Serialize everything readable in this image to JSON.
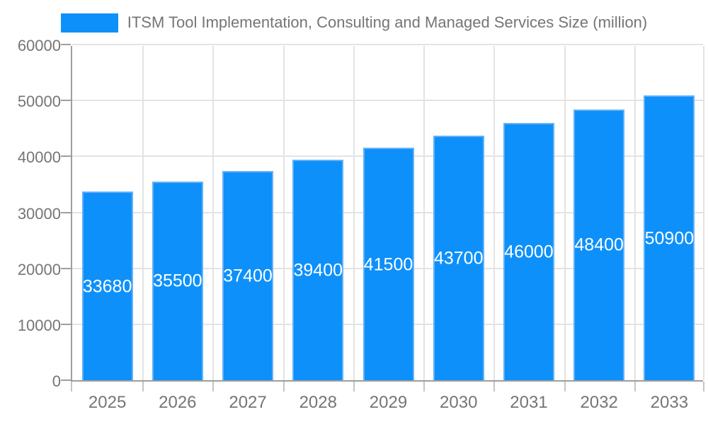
{
  "chart_data": {
    "type": "bar",
    "legend_label": "ITSM Tool Implementation, Consulting and Managed Services Size (million)",
    "categories": [
      "2025",
      "2026",
      "2027",
      "2028",
      "2029",
      "2030",
      "2031",
      "2032",
      "2033"
    ],
    "values": [
      33680,
      35500,
      37400,
      39400,
      41500,
      43700,
      46000,
      48400,
      50900
    ],
    "yticks": [
      0,
      10000,
      20000,
      30000,
      40000,
      50000,
      60000
    ],
    "ylim": [
      0,
      60000
    ],
    "grid": true,
    "legend_position": "top",
    "colors": {
      "bar_fill": "#0d90fa",
      "bar_border": "#64b1f6",
      "bar_label_text": "#ffffff",
      "axis_text": "#757575",
      "axis_line": "#9e9e9e",
      "gridline": "#e3e3e3"
    }
  }
}
